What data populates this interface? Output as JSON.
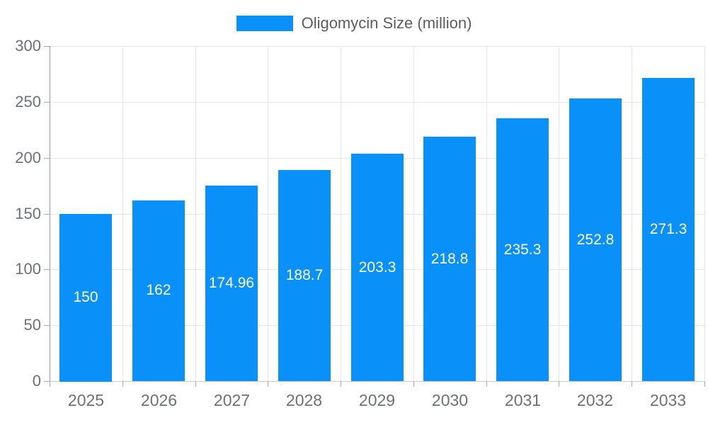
{
  "chart_data": {
    "type": "bar",
    "title": "",
    "legend_label": "Oligomycin Size (million)",
    "legend_position": "top",
    "categories": [
      "2025",
      "2026",
      "2027",
      "2028",
      "2029",
      "2030",
      "2031",
      "2032",
      "2033"
    ],
    "series": [
      {
        "name": "Oligomycin Size (million)",
        "values": [
          150,
          162,
          174.96,
          188.7,
          203.3,
          218.8,
          235.3,
          252.8,
          271.3
        ],
        "value_labels": [
          "150",
          "162",
          "174.96",
          "188.7",
          "203.3",
          "218.8",
          "235.3",
          "252.8",
          "271.3"
        ]
      }
    ],
    "xlabel": "",
    "ylabel": "",
    "ylim": [
      0,
      300
    ],
    "ytick_interval": 50,
    "ytick_labels": [
      "0",
      "50",
      "100",
      "150",
      "200",
      "250",
      "300"
    ],
    "grid": true,
    "colors": {
      "bar": "#0a90f9",
      "grid_line": "#e6e6e6",
      "y_axis_line": "#999999",
      "zero_axis_line": "#cccccc",
      "tick_mark": "#aaaaaa",
      "tick_text": "#6e7079",
      "legend_text": "#5d5d5d",
      "value_label_text": "#ffffff",
      "background": "#ffffff"
    }
  }
}
